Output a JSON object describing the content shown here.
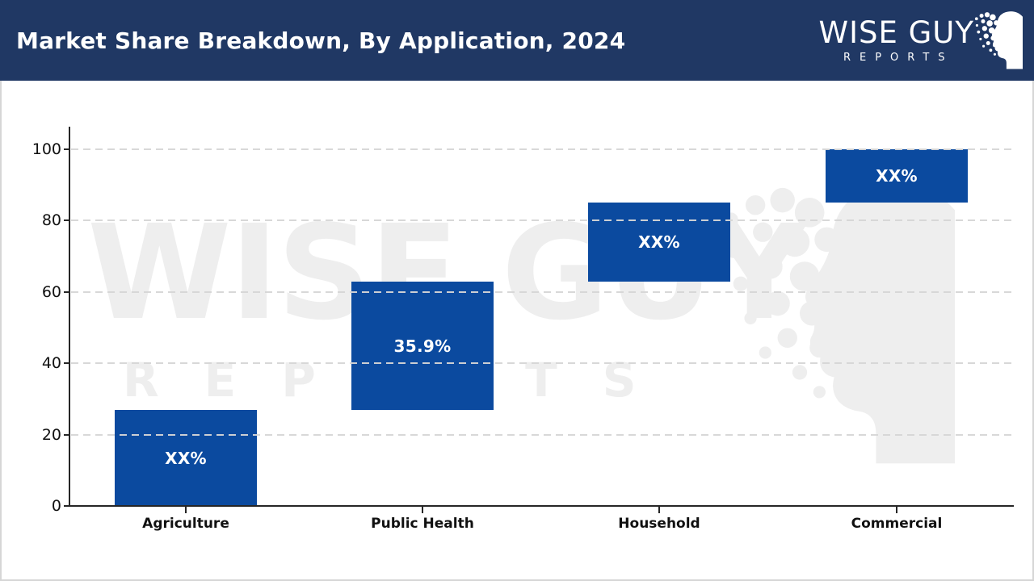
{
  "header": {
    "title": "Market Share Breakdown, By Application, 2024",
    "logo": {
      "name": "WISE GUY",
      "tagline": "REPORTS"
    }
  },
  "watermark": {
    "line1": "WISE GUY",
    "line2": "REPORTS"
  },
  "colors": {
    "header_bg": "#203864",
    "bar": "#0b4a9f",
    "grid": "#d6d6d6",
    "axis": "#262626",
    "bar_label_text": "#ffffff",
    "watermark": "#eeeeee"
  },
  "chart_data": {
    "type": "bar",
    "subtype": "waterfall",
    "title": "Market Share Breakdown, By Application, 2024",
    "categories": [
      "Agriculture",
      "Public Health",
      "Household",
      "Commercial"
    ],
    "bars": [
      {
        "category": "Agriculture",
        "start": 0,
        "end": 26.9,
        "value": 26.9,
        "label": "XX%"
      },
      {
        "category": "Public Health",
        "start": 26.9,
        "end": 62.8,
        "value": 35.9,
        "label": "35.9%"
      },
      {
        "category": "Household",
        "start": 62.8,
        "end": 85.1,
        "value": 22.3,
        "label": "XX%"
      },
      {
        "category": "Commercial",
        "start": 85.1,
        "end": 100,
        "value": 14.9,
        "label": "XX%"
      }
    ],
    "y_ticks": [
      0,
      20,
      40,
      60,
      80,
      100
    ],
    "ylim": [
      0,
      100
    ],
    "xlabel": "",
    "ylabel": "",
    "grid": "horizontal-dashed",
    "legend": "none"
  }
}
